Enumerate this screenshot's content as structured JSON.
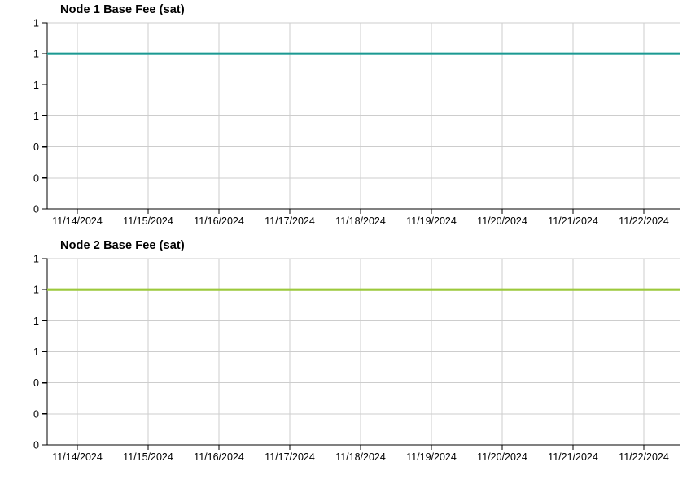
{
  "colors": {
    "background": "#ffffff",
    "gridline": "#cdcdcd",
    "axis": "#000000",
    "tick_text": "#000000",
    "title_text": "#000000"
  },
  "chart_data": [
    {
      "type": "line",
      "title": "Node 1 Base Fee (sat)",
      "x": [
        "11/14/2024",
        "11/15/2024",
        "11/16/2024",
        "11/17/2024",
        "11/18/2024",
        "11/19/2024",
        "11/20/2024",
        "11/21/2024",
        "11/22/2024"
      ],
      "series": [
        {
          "name": "Node 1 Base Fee",
          "values": [
            1,
            1,
            1,
            1,
            1,
            1,
            1,
            1,
            1
          ]
        }
      ],
      "y_ticks_display": [
        "1",
        "1",
        "1",
        "1",
        "0",
        "0",
        "0"
      ],
      "ylim": [
        0,
        1.2
      ],
      "xlabel": "",
      "ylabel": "",
      "grid": true,
      "legend": "none",
      "line_color": "#2ea59e",
      "line_core_color": "#0c8b85"
    },
    {
      "type": "line",
      "title": "Node 2 Base Fee (sat)",
      "x": [
        "11/14/2024",
        "11/15/2024",
        "11/16/2024",
        "11/17/2024",
        "11/18/2024",
        "11/19/2024",
        "11/20/2024",
        "11/21/2024",
        "11/22/2024"
      ],
      "series": [
        {
          "name": "Node 2 Base Fee",
          "values": [
            1,
            1,
            1,
            1,
            1,
            1,
            1,
            1,
            1
          ]
        }
      ],
      "y_ticks_display": [
        "1",
        "1",
        "1",
        "1",
        "0",
        "0",
        "0"
      ],
      "ylim": [
        0,
        1.2
      ],
      "xlabel": "",
      "ylabel": "",
      "grid": true,
      "legend": "none",
      "line_color": "#9cc93c",
      "line_core_color": null
    }
  ]
}
